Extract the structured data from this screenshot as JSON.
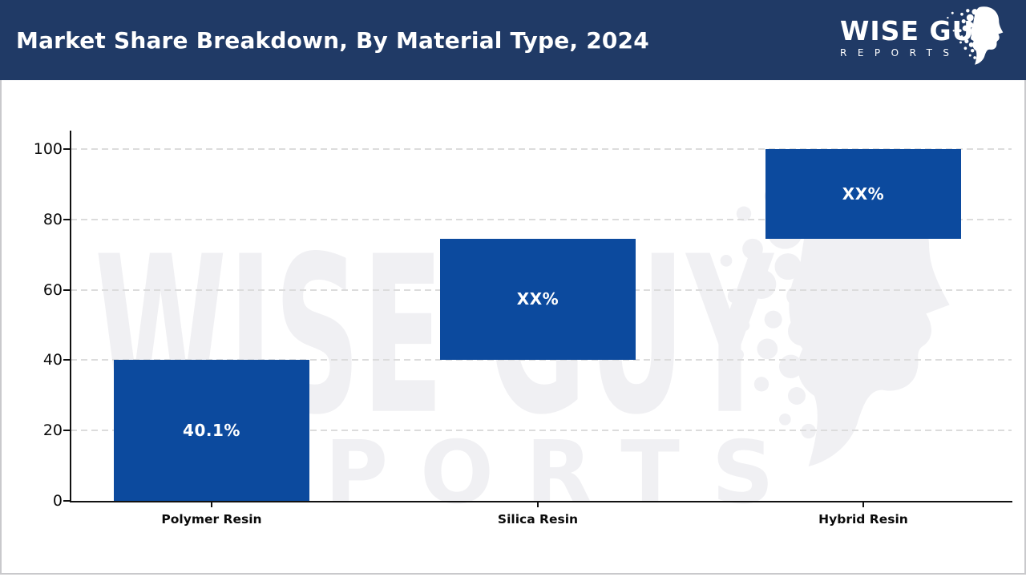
{
  "header": {
    "title": "Market Share Breakdown, By Material Type, 2024",
    "logo": {
      "name": "WISE GUY",
      "sub": "REPORTS"
    }
  },
  "watermark": {
    "line1": "WISE GUY",
    "line2": "REPORTS"
  },
  "colors": {
    "header_bg": "#203A66",
    "bar": "#0C4A9E",
    "grid": "#DCDCDC",
    "axis": "#111111",
    "watermark": "#F0F0F3",
    "label_on_bar": "#FFFFFF"
  },
  "chart_data": {
    "type": "bar",
    "subtype": "waterfall",
    "title": "Market Share Breakdown, By Material Type, 2024",
    "categories": [
      "Polymer Resin",
      "Silica Resin",
      "Hybrid Resin"
    ],
    "bars": [
      {
        "category": "Polymer Resin",
        "start": 0,
        "end": 40.1,
        "label": "40.1%"
      },
      {
        "category": "Silica Resin",
        "start": 40.1,
        "end": 74.5,
        "label": "XX%"
      },
      {
        "category": "Hybrid Resin",
        "start": 74.5,
        "end": 100,
        "label": "XX%"
      }
    ],
    "yticks": [
      0,
      20,
      40,
      60,
      80,
      100
    ],
    "ylim": [
      0,
      105
    ],
    "grid": "horizontal-dashed",
    "legend": "none",
    "xlabel": "",
    "ylabel": ""
  }
}
